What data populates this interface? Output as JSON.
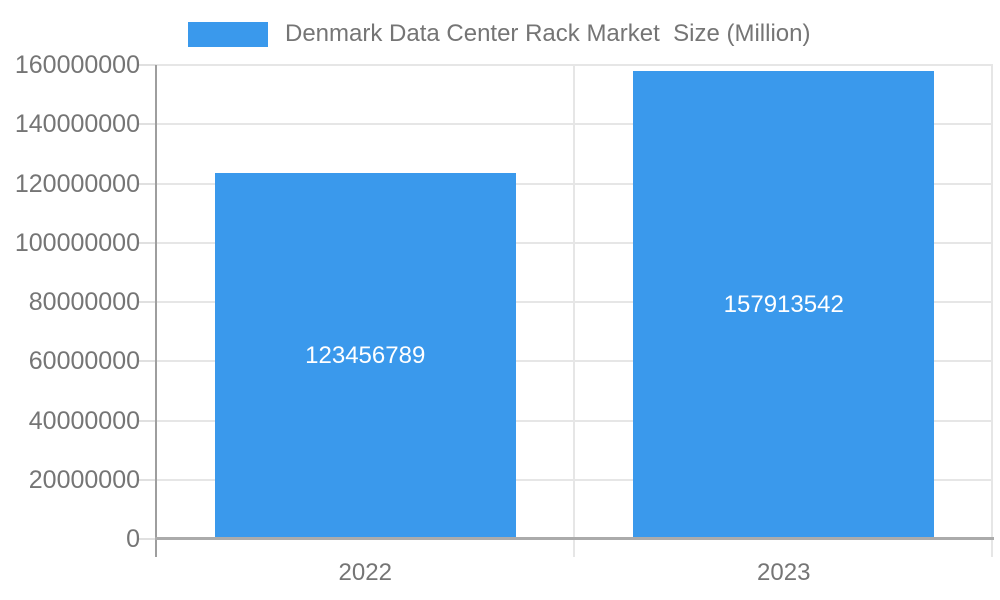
{
  "chart_data": {
    "type": "bar",
    "title": "Denmark Data Center Rack Market  Size (Million)",
    "categories": [
      "2022",
      "2023"
    ],
    "series": [
      {
        "name": "Denmark Data Center Rack Market  Size (Million)",
        "values": [
          123456789,
          157913542
        ]
      }
    ],
    "value_labels": [
      "123456789",
      "157913542"
    ],
    "xlabel": "",
    "ylabel": "",
    "ylim": [
      0,
      160000000
    ],
    "ytick_step": 20000000,
    "ytick_labels": [
      "0",
      "20000000",
      "40000000",
      "60000000",
      "80000000",
      "100000000",
      "120000000",
      "140000000",
      "160000000"
    ],
    "grid": true,
    "legend_position": "top",
    "colors": {
      "bar": "#3A99EC",
      "axis_text": "#757575",
      "value_text": "#FFFFFF",
      "gridline": "#E6E6E6",
      "tick": "#E0E0E0",
      "y_axis_line": "#9E9E9E",
      "x_axis_line": "#ABABAB"
    }
  }
}
